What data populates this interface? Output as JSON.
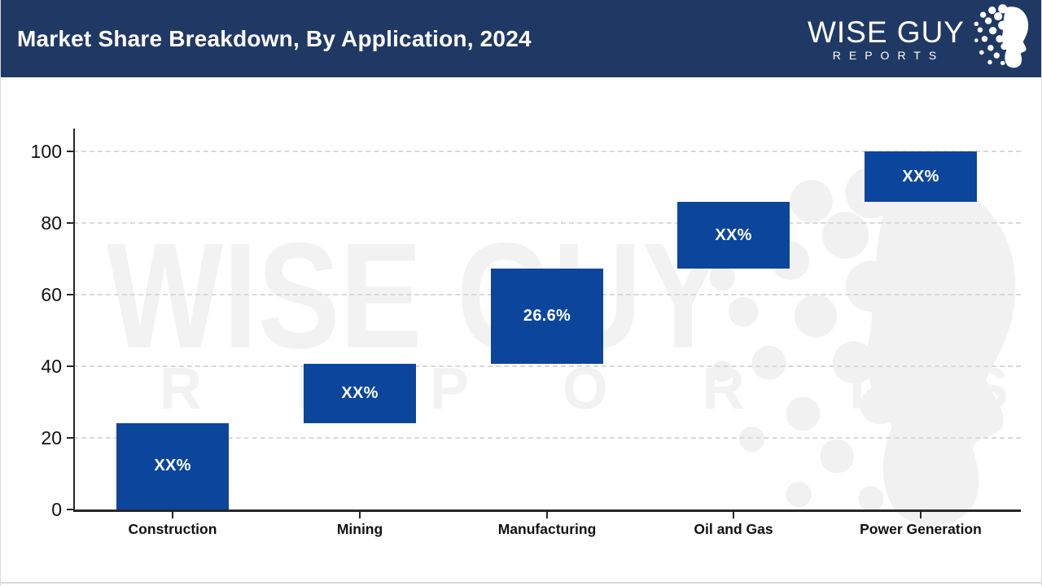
{
  "header": {
    "title": "Market Share Breakdown, By Application, 2024",
    "logo": {
      "line1": "WISE GUY",
      "line2": "REPORTS"
    }
  },
  "watermark": {
    "line1": "WISE GUY",
    "line2": "R E P O R T S"
  },
  "colors": {
    "header_bg": "#203864",
    "bar": "#0c459c",
    "gridline": "#d9d9d9",
    "axis": "#262626",
    "bar_label_text": "#ffffff",
    "watermark": "#f2f2f2"
  },
  "chart_data": {
    "type": "bar",
    "subtype": "waterfall",
    "title": "Market Share Breakdown, By Application, 2024",
    "categories": [
      "Construction",
      "Mining",
      "Manufacturing",
      "Oil and Gas",
      "Power Generation"
    ],
    "bars": [
      {
        "category": "Construction",
        "start": 0,
        "end": 24.1,
        "value": 24.1,
        "label": "XX%"
      },
      {
        "category": "Mining",
        "start": 24.1,
        "end": 40.7,
        "value": 16.6,
        "label": "XX%"
      },
      {
        "category": "Manufacturing",
        "start": 40.7,
        "end": 67.3,
        "value": 26.6,
        "label": "26.6%"
      },
      {
        "category": "Oil and Gas",
        "start": 67.3,
        "end": 85.8,
        "value": 18.5,
        "label": "XX%"
      },
      {
        "category": "Power Generation",
        "start": 85.8,
        "end": 100,
        "value": 14.2,
        "label": "XX%"
      }
    ],
    "yticks": [
      0,
      20,
      40,
      60,
      80,
      100
    ],
    "ylim": [
      0,
      105
    ],
    "xlabel": "",
    "ylabel": "",
    "grid": "horizontal-dashed",
    "legend": false
  }
}
